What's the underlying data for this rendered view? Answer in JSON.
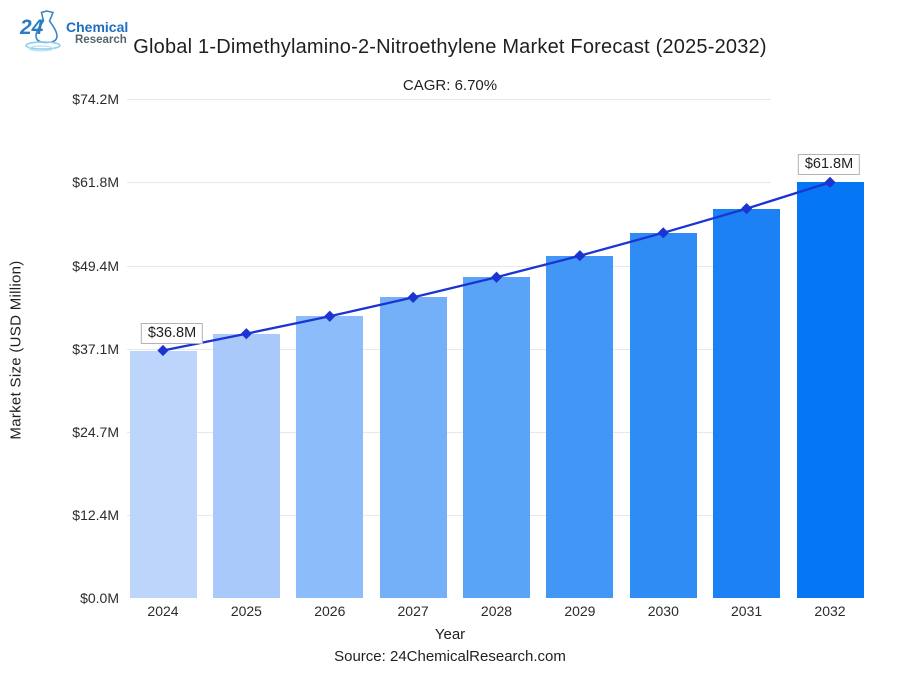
{
  "logo": {
    "number": "24",
    "line1": "Chemical",
    "line2": "Research"
  },
  "header": {
    "title": "Global 1-Dimethylamino-2-Nitroethylene Market Forecast (2025-2032)",
    "subtitle": "CAGR: 6.70%"
  },
  "chart_data": {
    "type": "bar",
    "overlay": "line",
    "categories": [
      "2024",
      "2025",
      "2026",
      "2027",
      "2028",
      "2029",
      "2030",
      "2031",
      "2032"
    ],
    "values": [
      36.8,
      39.3,
      41.9,
      44.7,
      47.7,
      50.9,
      54.3,
      57.9,
      61.8
    ],
    "title": "Global 1-Dimethylamino-2-Nitroethylene Market Forecast (2025-2032)",
    "xlabel": "Year",
    "ylabel": "Market Size (USD Million)",
    "ylim": [
      0,
      74.2
    ],
    "yticks": [
      0,
      12.4,
      24.7,
      37.1,
      49.4,
      61.8,
      74.2
    ],
    "ytick_labels": [
      "$0.0M",
      "$12.4M",
      "$24.7M",
      "$37.1M",
      "$49.4M",
      "$61.8M",
      "$74.2M"
    ],
    "grid": true,
    "grid_color": "#e8e8e8",
    "legend": "none",
    "bar_colors": [
      "#bed5fb",
      "#a8c9fa",
      "#8cbcf9",
      "#73b0f8",
      "#5aa4f8",
      "#4297f6",
      "#2f8cf5",
      "#1b81f4",
      "#0677f4"
    ],
    "line_color": "#1c35d2",
    "annotations": [
      {
        "index": 0,
        "label": "$36.8M",
        "dx": 9
      },
      {
        "index": 8,
        "label": "$61.8M",
        "dx": -1
      }
    ]
  },
  "footer": {
    "source": "Source: 24ChemicalResearch.com"
  }
}
